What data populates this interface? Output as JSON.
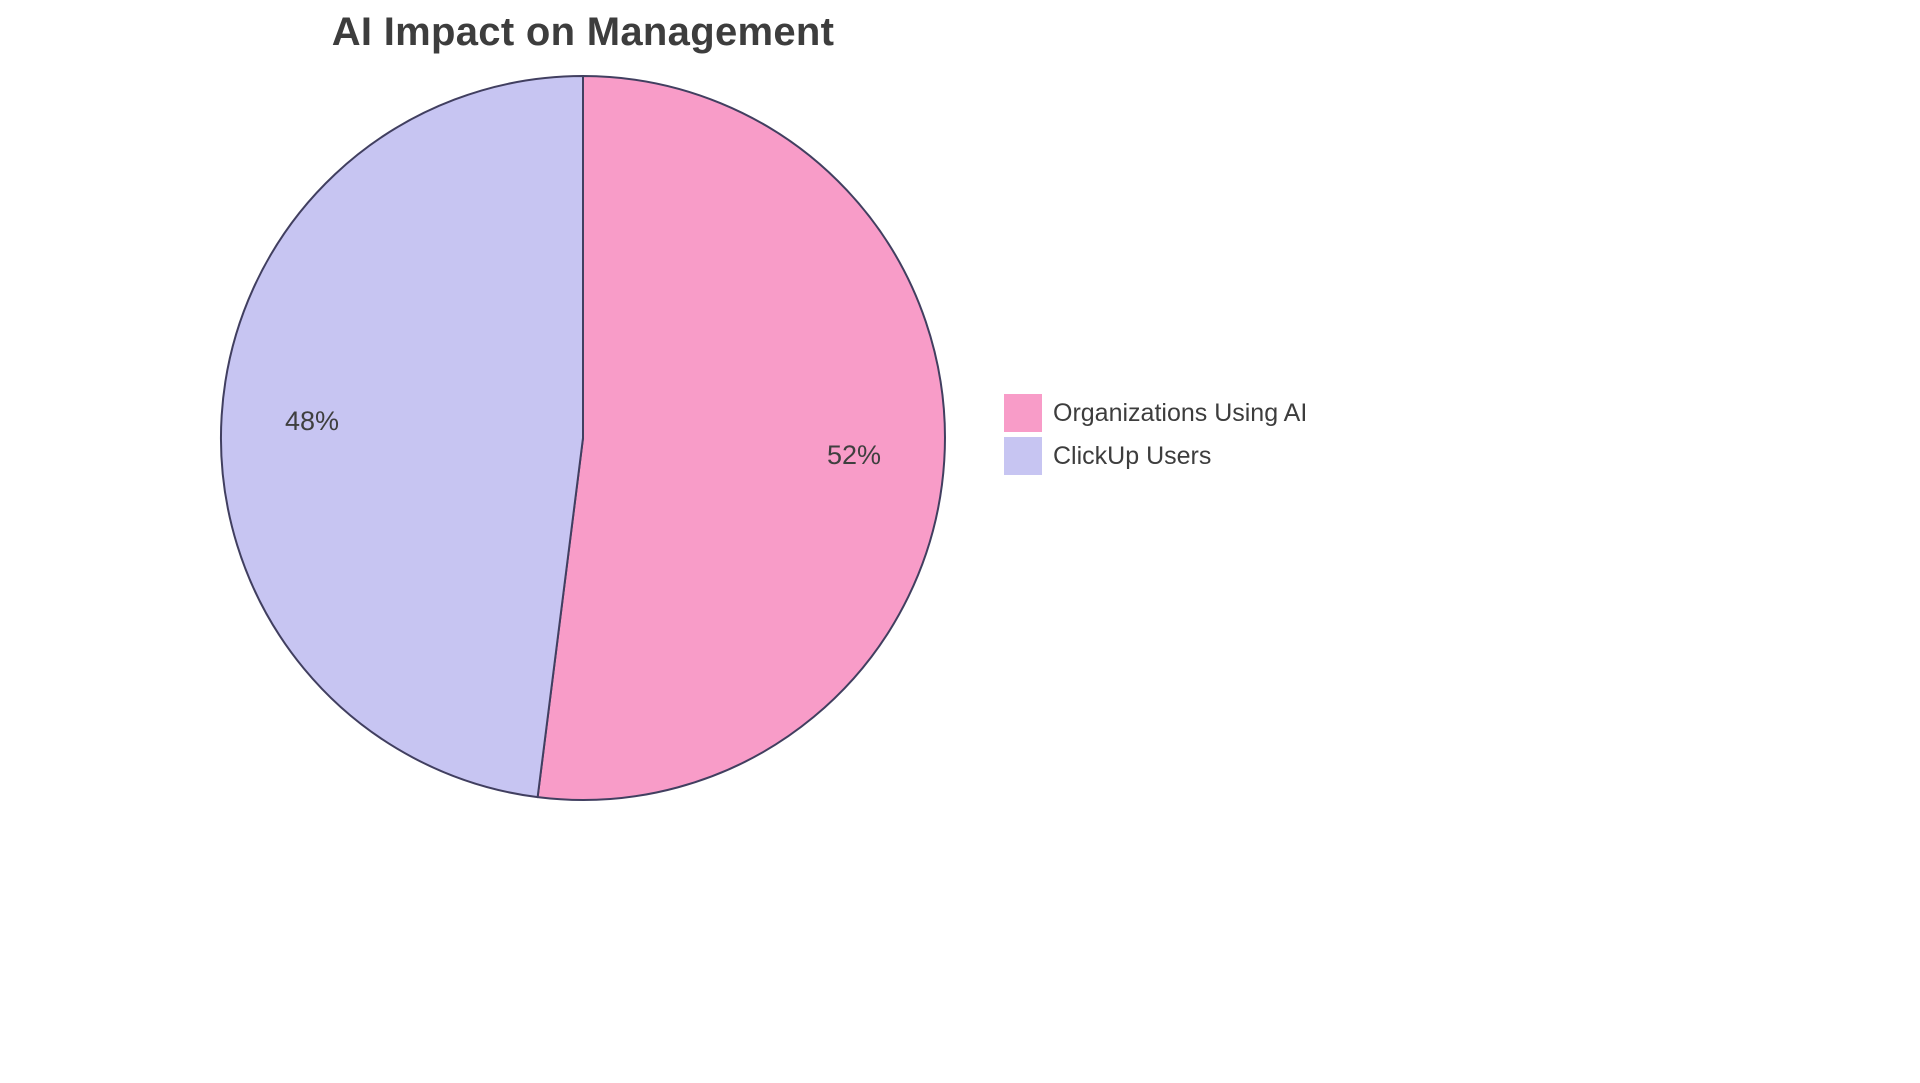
{
  "chart_data": {
    "type": "pie",
    "title": "AI Impact on Management",
    "series": [
      {
        "name": "Organizations Using AI",
        "value": 52,
        "label": "52%",
        "color": "#F89CC8"
      },
      {
        "name": "ClickUp Users",
        "value": 48,
        "label": "48%",
        "color": "#C7C5F2"
      }
    ],
    "legend_position": "right",
    "start_angle": "top",
    "direction": "clockwise",
    "stroke_color": "#413F60",
    "label_color": "#3F3F3F",
    "background_color": "#FFFFFF"
  }
}
